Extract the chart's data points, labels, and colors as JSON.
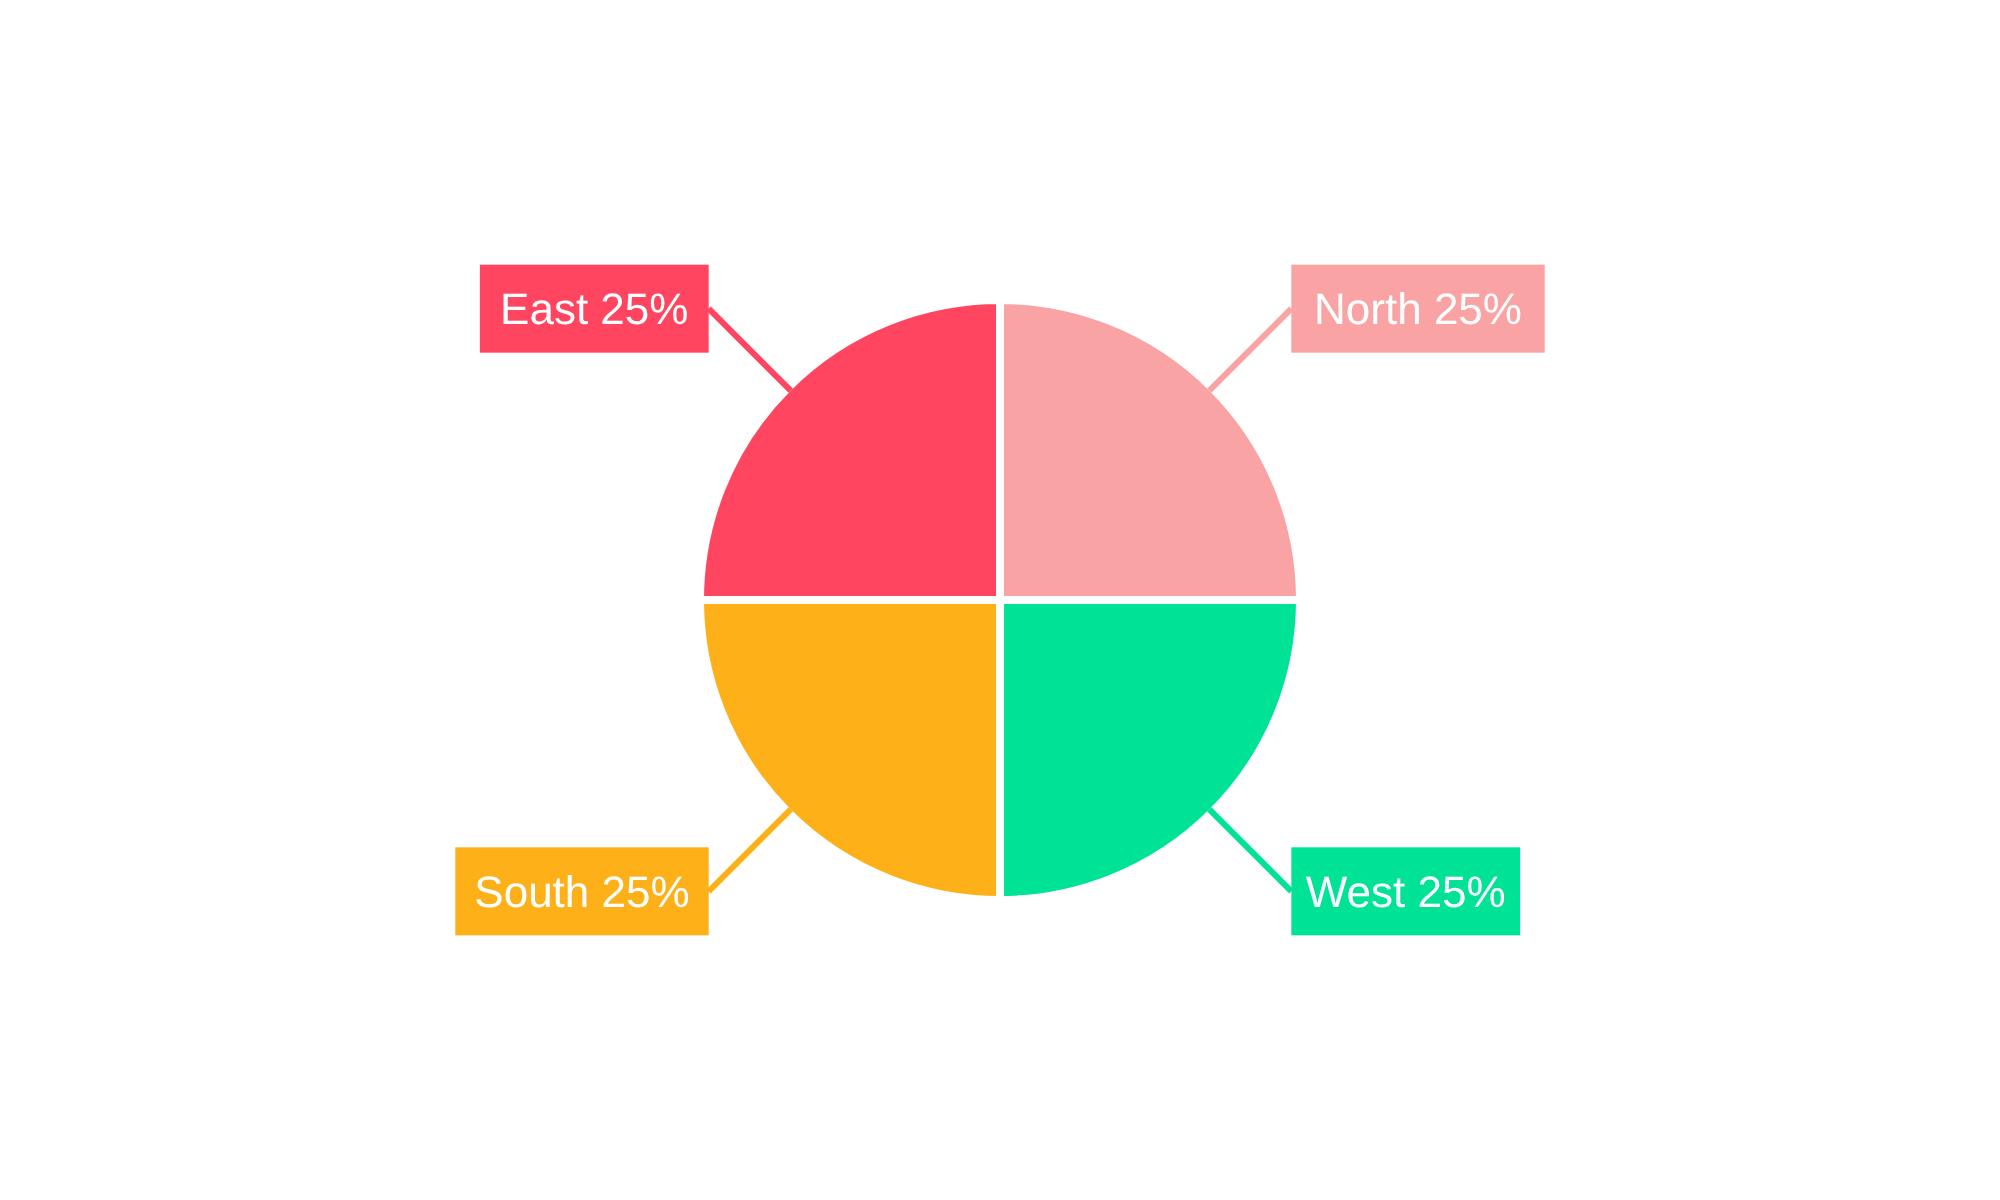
{
  "chart_data": {
    "type": "pie",
    "categories": [
      "North",
      "West",
      "South",
      "East"
    ],
    "values": [
      25,
      25,
      25,
      25
    ],
    "value_labels": [
      "25%",
      "25%",
      "25%",
      "25%"
    ],
    "colors": [
      "#f9a3a4",
      "#00e396",
      "#feb019",
      "#ff4560"
    ]
  }
}
